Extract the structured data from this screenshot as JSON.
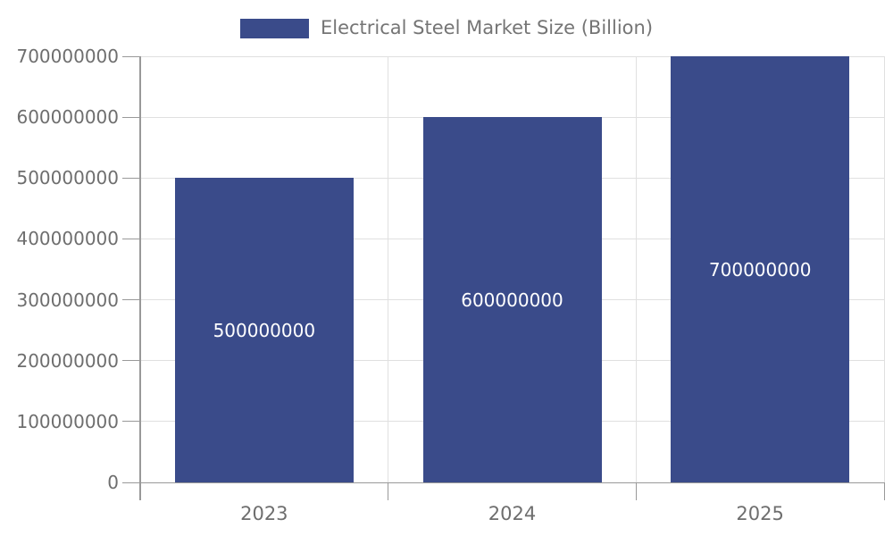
{
  "legend": {
    "label": "Electrical Steel Market Size (Billion)"
  },
  "colors": {
    "bar": "#3A4B8A",
    "bar_label": "#FFFFFF",
    "gridline": "#E0E0E0",
    "axis_line": "#999999",
    "axis_text": "#6E6E6E",
    "legend_text": "#757575",
    "background": "#FFFFFF"
  },
  "chart_data": {
    "type": "bar",
    "title": "",
    "series_name": "Electrical Steel Market Size (Billion)",
    "categories": [
      "2023",
      "2024",
      "2025"
    ],
    "values": [
      500000000,
      600000000,
      700000000
    ],
    "bar_labels": [
      "500000000",
      "600000000",
      "700000000"
    ],
    "xlabel": "",
    "ylabel": "",
    "ylim": [
      0,
      700000000
    ],
    "ytick_step": 100000000,
    "yticks": [
      {
        "value": 0,
        "label": "0"
      },
      {
        "value": 100000000,
        "label": "100000000"
      },
      {
        "value": 200000000,
        "label": "200000000"
      },
      {
        "value": 300000000,
        "label": "300000000"
      },
      {
        "value": 400000000,
        "label": "400000000"
      },
      {
        "value": 500000000,
        "label": "500000000"
      },
      {
        "value": 600000000,
        "label": "600000000"
      },
      {
        "value": 700000000,
        "label": "700000000"
      }
    ],
    "grid": true,
    "legend_position": "top-center"
  }
}
